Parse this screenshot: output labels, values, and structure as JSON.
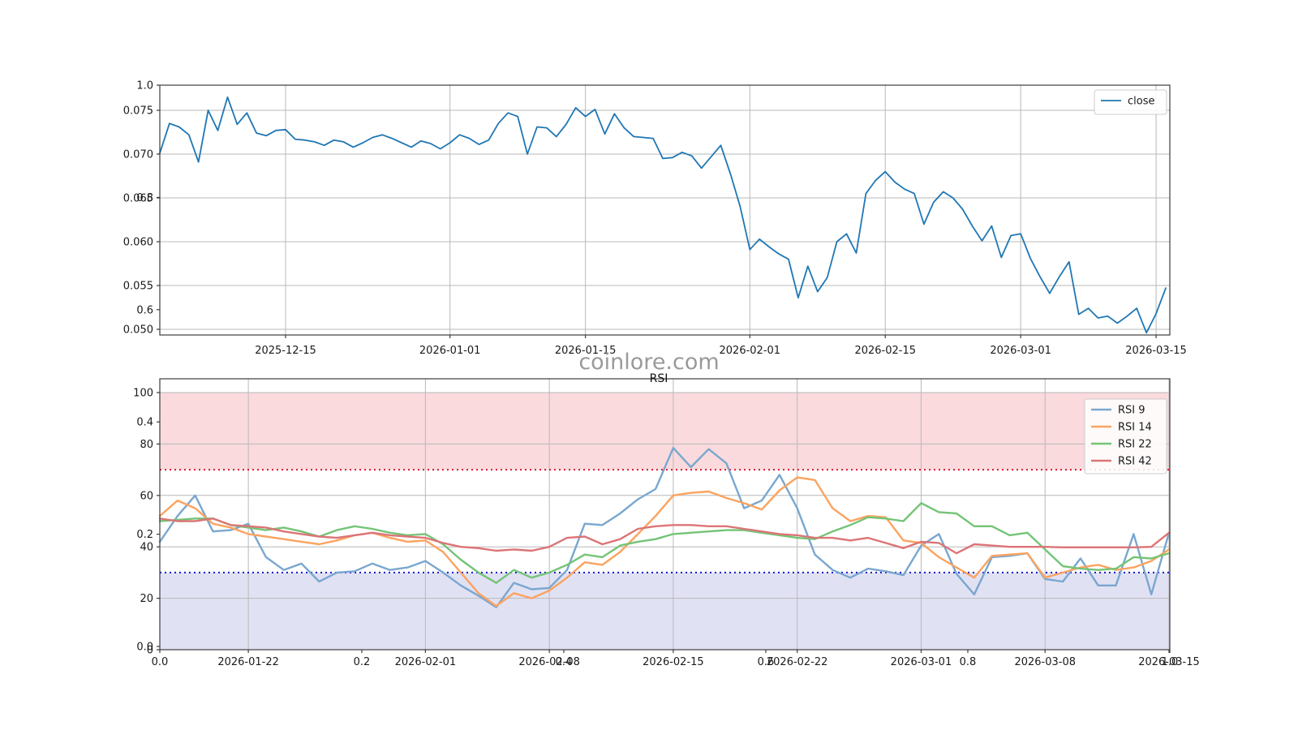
{
  "watermark": "coinlore.com",
  "colors": {
    "grid": "#b8b8b8",
    "spine": "#3c3c3c",
    "tick_text": "#1a1a1a",
    "watermark_text": "#9a9a9a",
    "legend_border": "#cccccc",
    "overbought_band": "#fadadd",
    "oversold_band": "#e1e1f4",
    "overbought_line": "#dc1433",
    "oversold_line": "#1414cc"
  },
  "overlay_axis": {
    "x_tick_labels": [
      "0.0",
      "0.2",
      "0.4",
      "0.6",
      "0.8",
      "1.0"
    ],
    "y_tick_labels": [
      "1.0",
      "0.8",
      "0.6",
      "0.4",
      "0.2",
      "0.0"
    ]
  },
  "chart_data": [
    {
      "type": "line",
      "title": "",
      "legend_position": "upper right",
      "grid": true,
      "start_date": "2025-12-02",
      "xlim": [
        "2025-12-02",
        "2026-03-17"
      ],
      "ylim": [
        0.0494,
        0.0779
      ],
      "x_tick_labels": [
        "2025-12-15",
        "2026-01-01",
        "2026-01-15",
        "2026-02-01",
        "2026-02-15",
        "2026-03-01",
        "2026-03-15"
      ],
      "y_tick_labels": [
        "0.050",
        "0.055",
        "0.060",
        "0.065",
        "0.070",
        "0.075"
      ],
      "y_tick_values": [
        0.05,
        0.055,
        0.06,
        0.065,
        0.07,
        0.075
      ],
      "series": [
        {
          "name": "close",
          "color": "#1f77b4",
          "width": 1.8,
          "values": [
            0.0701,
            0.0735,
            0.0731,
            0.0722,
            0.0691,
            0.075,
            0.0727,
            0.0765,
            0.0734,
            0.0747,
            0.0724,
            0.0721,
            0.0727,
            0.0728,
            0.0717,
            0.0716,
            0.0714,
            0.071,
            0.0716,
            0.0714,
            0.0708,
            0.0713,
            0.0719,
            0.0722,
            0.0718,
            0.0713,
            0.0708,
            0.0715,
            0.0712,
            0.0706,
            0.0713,
            0.0722,
            0.0718,
            0.0711,
            0.0716,
            0.0735,
            0.0747,
            0.0743,
            0.07,
            0.0731,
            0.073,
            0.072,
            0.0734,
            0.0753,
            0.0743,
            0.0751,
            0.0723,
            0.0746,
            0.073,
            0.072,
            0.0719,
            0.0718,
            0.0695,
            0.0696,
            0.0702,
            0.0698,
            0.0684,
            0.0697,
            0.071,
            0.0677,
            0.064,
            0.0591,
            0.0603,
            0.0594,
            0.0586,
            0.058,
            0.0536,
            0.0572,
            0.0543,
            0.0559,
            0.06,
            0.0609,
            0.0587,
            0.0655,
            0.067,
            0.068,
            0.0668,
            0.066,
            0.0655,
            0.062,
            0.0645,
            0.0657,
            0.065,
            0.0637,
            0.0618,
            0.0601,
            0.0618,
            0.0582,
            0.0607,
            0.0609,
            0.0581,
            0.056,
            0.0541,
            0.056,
            0.0577,
            0.0517,
            0.0524,
            0.0513,
            0.0515,
            0.0507,
            0.0515,
            0.0524,
            0.0496,
            0.0518,
            0.0547
          ]
        }
      ]
    },
    {
      "type": "line",
      "title": "RSI",
      "legend_position": "upper right",
      "grid": true,
      "start_date": "2026-01-17",
      "xlim": [
        "2026-01-17",
        "2026-03-15"
      ],
      "ylim": [
        0,
        105
      ],
      "x_tick_labels": [
        "2026-01-22",
        "2026-02-01",
        "2026-02-08",
        "2026-02-15",
        "2026-02-22",
        "2026-03-01",
        "2026-03-08",
        "2026-03-15"
      ],
      "y_tick_labels": [
        "0",
        "20",
        "40",
        "60",
        "80",
        "100"
      ],
      "y_tick_values": [
        0,
        20,
        40,
        60,
        80,
        100
      ],
      "bands": [
        {
          "name": "overbought-band",
          "from": 70,
          "to": 100
        },
        {
          "name": "oversold-band",
          "from": 0,
          "to": 30
        }
      ],
      "ref_lines": [
        {
          "name": "overbought-line",
          "y": 70
        },
        {
          "name": "oversold-line",
          "y": 30
        }
      ],
      "series": [
        {
          "name": "RSI 9",
          "color": "#79a7cf",
          "width": 2.4,
          "values": [
            42,
            52,
            60,
            46,
            46.5,
            49,
            36,
            31,
            33.5,
            26.5,
            30,
            30.5,
            33.5,
            31,
            32,
            34.5,
            30,
            25,
            21,
            16.5,
            26,
            23.5,
            24,
            31,
            49,
            48.5,
            53,
            58.5,
            62.5,
            78.5,
            71,
            78,
            72.5,
            55,
            58,
            68,
            55,
            37,
            31,
            28,
            31.5,
            30.5,
            29,
            40.5,
            45,
            29.5,
            21.5,
            36,
            36.5,
            37.5,
            27.5,
            26.5,
            35.5,
            25,
            25,
            45,
            21.5,
            45.5
          ]
        },
        {
          "name": "RSI 14",
          "color": "#fba35f",
          "width": 2.4,
          "values": [
            52,
            58,
            55,
            49,
            47.5,
            45,
            44,
            43,
            42,
            41,
            42.5,
            44.5,
            45.5,
            43.5,
            42,
            42.5,
            38,
            30,
            22,
            17,
            22,
            20,
            23,
            28,
            34,
            33,
            38,
            45,
            52,
            60,
            61,
            61.5,
            59,
            57,
            54.5,
            62,
            67,
            66,
            55,
            50,
            52,
            51.5,
            42.5,
            41.5,
            36,
            32,
            28,
            36.5,
            37,
            37.5,
            28,
            30,
            32,
            33,
            31,
            32,
            34.5,
            39
          ]
        },
        {
          "name": "RSI 22",
          "color": "#74c476",
          "width": 2.4,
          "values": [
            50,
            50.5,
            51,
            51,
            48.5,
            47.5,
            46.5,
            47.5,
            46,
            44,
            46.5,
            48,
            47,
            45.5,
            44.5,
            45,
            41,
            35,
            30,
            26,
            31,
            28,
            30,
            33,
            37,
            36,
            40.5,
            42,
            43,
            45,
            45.5,
            46,
            46.5,
            46.5,
            45.5,
            44.5,
            43.5,
            43,
            46,
            48.5,
            51.5,
            51,
            50,
            57,
            53.5,
            53,
            48,
            48,
            44.5,
            45.5,
            39,
            32.5,
            31.5,
            31,
            31.5,
            36,
            35.5,
            37.5
          ]
        },
        {
          "name": "RSI 42",
          "color": "#dc7476",
          "width": 2.4,
          "values": [
            51,
            50,
            50,
            51,
            48.5,
            48,
            47.5,
            46,
            45,
            44,
            43.5,
            44.5,
            45.5,
            44.5,
            44,
            43.5,
            41.5,
            40,
            39.5,
            38.5,
            39,
            38.5,
            40,
            43.5,
            44,
            41,
            43,
            47,
            48,
            48.5,
            48.5,
            48,
            48,
            47,
            46,
            45,
            44.5,
            43.5,
            43.5,
            42.5,
            43.5,
            41.5,
            39.5,
            42,
            41.5,
            37.5,
            41,
            40.5,
            40,
            40,
            40,
            39.8,
            39.8,
            39.8,
            39.8,
            39.8,
            40,
            45.5
          ]
        }
      ]
    }
  ]
}
